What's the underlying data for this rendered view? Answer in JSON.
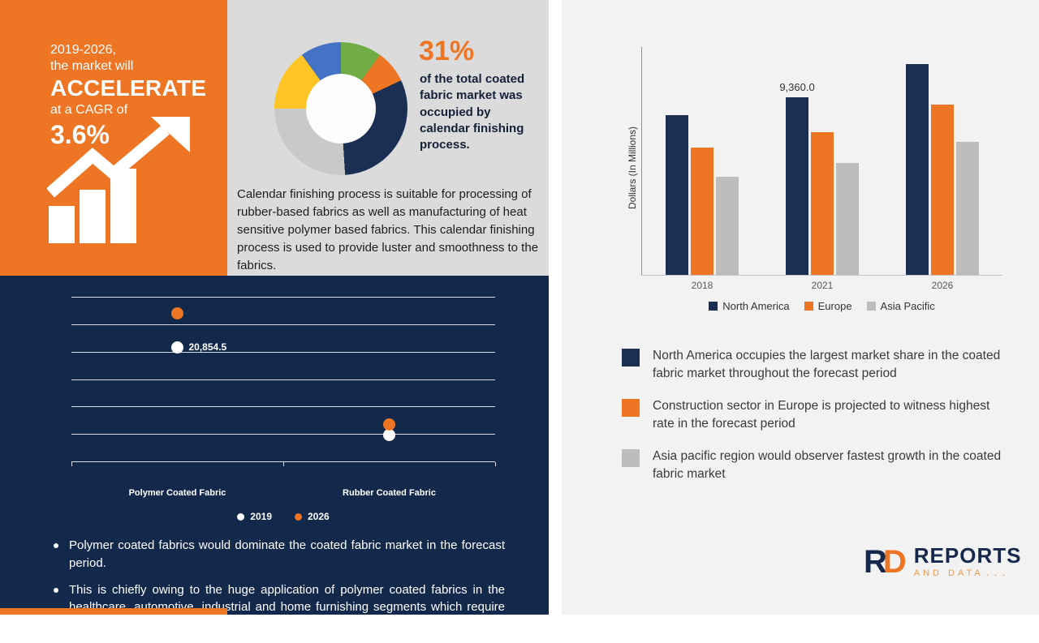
{
  "colors": {
    "orange": "#ED7524",
    "navy_panel": "#13294B",
    "navy_bar": "#1B2F55",
    "gray_bar": "#BDBDBD",
    "panel_gray": "#DBDBDB",
    "right_bg": "#F2F2F2",
    "yellow": "#FFC425",
    "blue": "#4472C4",
    "green": "#70AD47",
    "white": "#FFFFFF"
  },
  "cagr_panel": {
    "period": "2019-2026,",
    "line2": "the market will",
    "accelerate": "ACCELERATE",
    "line4": "at a CAGR of",
    "cagr": "3.6%"
  },
  "donut_panel": {
    "percent": "31%",
    "headline": "of the total coated fabric market was occupied by calendar finishing process.",
    "paragraph": "Calendar finishing process is suitable for processing of rubber-based fabrics as well as manufacturing of heat sensitive polymer based fabrics. This calendar finishing process is used to provide luster and smoothness to the fabrics."
  },
  "dot_panel": {
    "bullets": [
      "Polymer coated fabrics would dominate the coated fabric market in the forecast period.",
      "This is chiefly owing to the huge application of polymer coated fabrics in the healthcare, automotive, industrial and home furnishing segments which require superior fabric strength."
    ]
  },
  "right_bullets": [
    {
      "text": "North America occupies the largest market share in the coated fabric market throughout the forecast period"
    },
    {
      "text": "Construction sector in Europe is projected to witness highest rate in the forecast period"
    },
    {
      "text": "Asia pacific region would observer fastest growth in the coated fabric market"
    }
  ],
  "logo": {
    "mark_left": "R",
    "mark_right": "D",
    "name": "REPORTS",
    "tagline": "AND DATA",
    "dots": ". . ."
  },
  "chart_data": [
    {
      "type": "pie",
      "variant": "donut",
      "title": "",
      "annotation": "31% of the total coated fabric market was occupied by calendar finishing process.",
      "slices": [
        {
          "label": "",
          "value": 10,
          "color": "#70AD47"
        },
        {
          "label": "",
          "value": 8,
          "color": "#ED7524"
        },
        {
          "label": "Calendar finishing process",
          "value": 31,
          "color": "#1B2F55"
        },
        {
          "label": "",
          "value": 26,
          "color": "#C9C9C9"
        },
        {
          "label": "",
          "value": 15,
          "color": "#FFC425"
        },
        {
          "label": "",
          "value": 10,
          "color": "#4472C4"
        }
      ]
    },
    {
      "type": "scatter",
      "title": "",
      "categories": [
        "Polymer Coated Fabric",
        "Rubber Coated Fabric"
      ],
      "series": [
        {
          "name": "2019",
          "color": "#FFFFFF",
          "values": [
            20854.5,
            5000
          ]
        },
        {
          "name": "2026",
          "color": "#ED7524",
          "values": [
            27000,
            6800
          ]
        }
      ],
      "ylim": [
        0,
        30000
      ],
      "gridlines": 7,
      "grid": true,
      "legend_position": "bottom",
      "data_labels": [
        {
          "series": "2019",
          "category": "Polymer Coated Fabric",
          "text": "20,854.5"
        }
      ]
    },
    {
      "type": "bar",
      "title": "",
      "categories": [
        "2018",
        "2021",
        "2026"
      ],
      "series": [
        {
          "name": "North America",
          "color": "#1B2F55",
          "values": [
            8400,
            9360,
            11100
          ]
        },
        {
          "name": "Europe",
          "color": "#ED7524",
          "values": [
            6700,
            7500,
            8950
          ]
        },
        {
          "name": "Asia Pacific",
          "color": "#BDBDBD",
          "values": [
            5150,
            5900,
            7000
          ]
        }
      ],
      "xlabel": "",
      "ylabel": "Dollars (In Millions)",
      "ylim": [
        0,
        12000
      ],
      "grid": false,
      "legend_position": "bottom",
      "data_labels": [
        {
          "series": "North America",
          "category": "2021",
          "text": "9,360.0"
        }
      ]
    }
  ]
}
